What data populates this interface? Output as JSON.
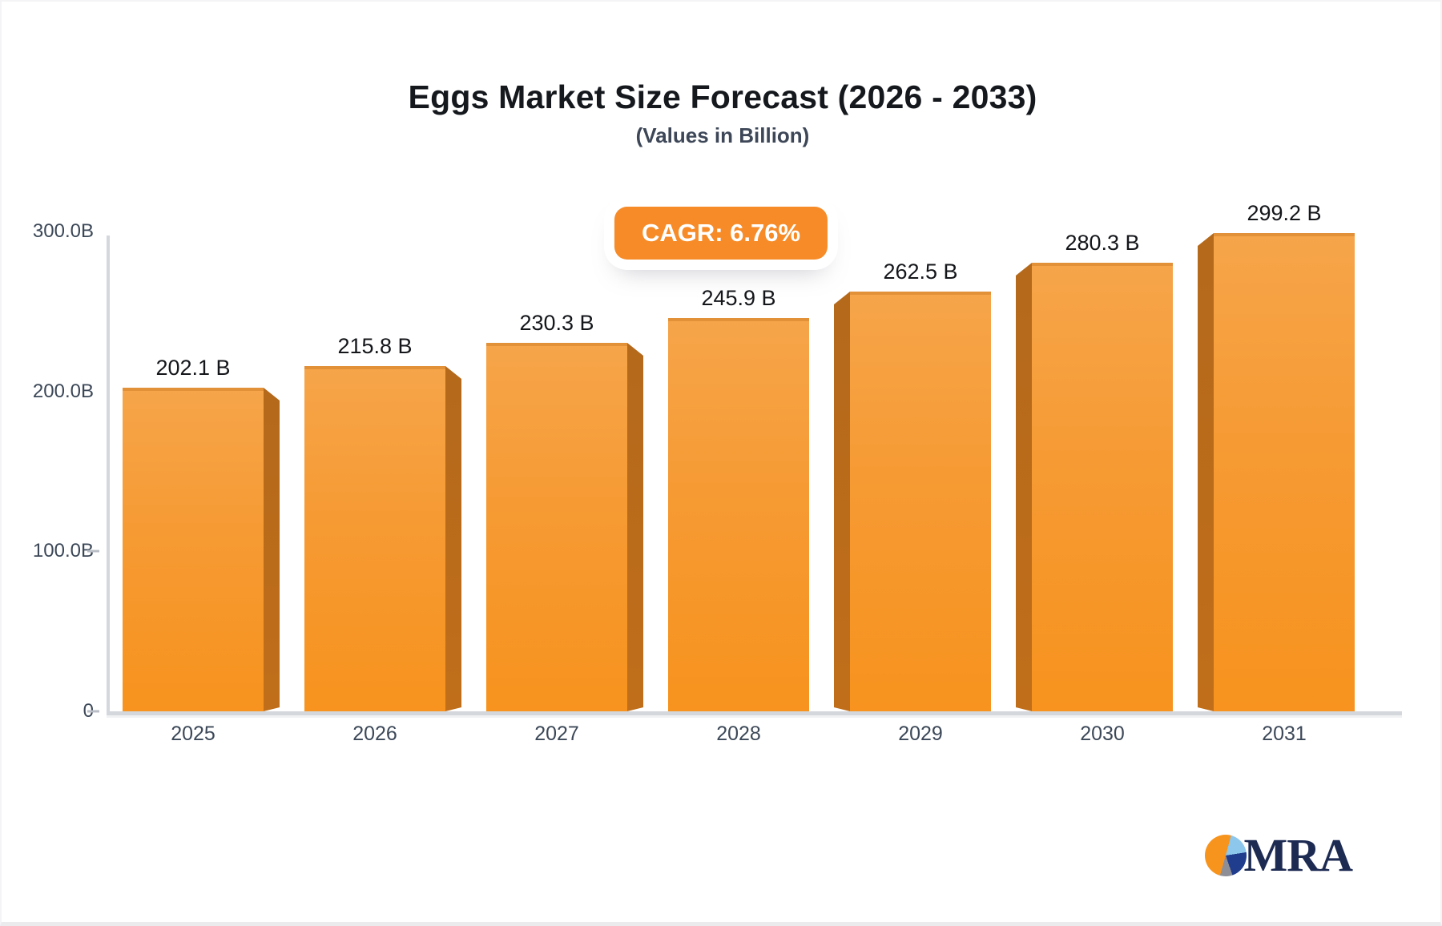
{
  "header": {
    "title": "Eggs Market Size Forecast (2026 - 2033)",
    "subtitle": "(Values in Billion)",
    "cagr_label": "CAGR: 6.76%"
  },
  "chart_data": {
    "type": "bar",
    "title": "Eggs Market Size Forecast (2026 - 2033)",
    "subtitle": "(Values in Billion)",
    "annotation": "CAGR: 6.76%",
    "categories": [
      "2025",
      "2026",
      "2027",
      "2028",
      "2029",
      "2030",
      "2031"
    ],
    "values": [
      202.1,
      215.8,
      230.3,
      245.9,
      262.5,
      280.3,
      299.2
    ],
    "value_labels": [
      "202.1 B",
      "215.8 B",
      "230.3 B",
      "245.9 B",
      "262.5 B",
      "280.3 B",
      "299.2 B"
    ],
    "ylabel": "",
    "xlabel": "",
    "ylim": [
      0,
      300
    ],
    "yticks": [
      {
        "value": 0,
        "label": "0",
        "dash": true
      },
      {
        "value": 100,
        "label": "100.0B",
        "dash": true
      },
      {
        "value": 200,
        "label": "200.0B",
        "dash": false
      },
      {
        "value": 300,
        "label": "300.0B",
        "dash": false
      }
    ],
    "grid": false,
    "legend": false,
    "style": "3d-column",
    "bar_color": "#f7941e",
    "bar_side_color": "#bf6f1c"
  },
  "colors": {
    "badge_bg": "#f68b28",
    "axis": "#d4d7dc",
    "title_text": "#15181d",
    "subtitle_text": "#3d4757",
    "tick_text": "#3c4858",
    "logo_navy": "#1d2b53",
    "logo_orange": "#f7941e",
    "logo_lightblue": "#8ec7ec",
    "logo_gray": "#8e8e96"
  },
  "logo": {
    "text": "MRA"
  }
}
